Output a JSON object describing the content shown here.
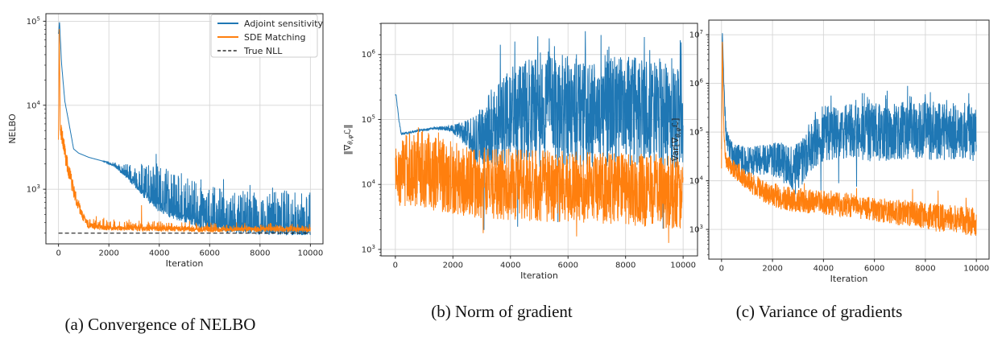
{
  "figure": {
    "background": "#ffffff",
    "accent_colors": {
      "blue": "#1f77b4",
      "orange": "#ff7f0e",
      "black": "#000000",
      "grid": "#d6d6d6",
      "spine": "#262626",
      "text": "#262626"
    },
    "chart_data": [
      {
        "id": "a",
        "type": "line",
        "caption": "(a) Convergence of NELBO",
        "xlabel": "Iteration",
        "ylabel": {
          "pre": "NELBO",
          "sub": "",
          "post": ""
        },
        "xlim": [
          -500,
          10500
        ],
        "ylim_log": [
          2.35,
          5.09
        ],
        "xticks": [
          0,
          2000,
          4000,
          6000,
          8000,
          10000
        ],
        "ytick_exponents": [
          3,
          4,
          5
        ],
        "grid": true,
        "legend": {
          "position": "upper right",
          "entries": [
            {
              "label": "Adjoint sensitivity",
              "color": "#1f77b4",
              "dash": false
            },
            {
              "label": "SDE Matching",
              "color": "#ff7f0e",
              "dash": false
            },
            {
              "label": "True NLL",
              "color": "#000000",
              "dash": true
            }
          ]
        },
        "hline": {
          "name": "True NLL",
          "value": 300,
          "log_value": 2.477,
          "color": "#000000",
          "dash": true
        },
        "series": [
          {
            "name": "Adjoint sensitivity",
            "color": "#1f77b4",
            "x": [
              0,
              40,
              120,
              250,
              400,
              600,
              800,
              1200,
              1700,
              2200,
              2600,
              3000,
              3500,
              4000,
              4500,
              5000,
              5500,
              6000,
              7000,
              8000,
              9000,
              10000
            ],
            "log_center": [
              4.85,
              5.0,
              4.5,
              4.05,
              3.81,
              3.48,
              3.43,
              3.38,
              3.34,
              3.28,
              3.18,
              3.06,
              2.9,
              2.78,
              2.7,
              2.645,
              2.6,
              2.56,
              2.52,
              2.505,
              2.5,
              2.5
            ],
            "log_noise": [
              0,
              0,
              0,
              0,
              0,
              0,
              0,
              0,
              0,
              0.01,
              0.02,
              0.03,
              0.04,
              0.05,
              0.05,
              0.05,
              0.05,
              0.05,
              0.05,
              0.05,
              0.05,
              0.05
            ],
            "spike_max": [
              0,
              0,
              0,
              0,
              0,
              0,
              0,
              0,
              0,
              0.04,
              0.12,
              0.22,
              0.38,
              0.5,
              0.52,
              0.5,
              0.5,
              0.5,
              0.48,
              0.46,
              0.45,
              0.42
            ],
            "spike_prob": 0.5,
            "events": [
              [
                3880,
                3.42
              ],
              [
                3300,
                3.3
              ],
              [
                2550,
                3.25
              ],
              [
                4350,
                3.22
              ],
              [
                4750,
                3.16
              ],
              [
                5300,
                3.1
              ],
              [
                6550,
                3.12
              ],
              [
                7600,
                3.05
              ],
              [
                8500,
                3.02
              ],
              [
                9050,
                2.98
              ],
              [
                9650,
                2.95
              ],
              [
                9980,
                2.96
              ]
            ]
          },
          {
            "name": "SDE Matching",
            "color": "#ff7f0e",
            "x": [
              0,
              30,
              70,
              150,
              300,
              450,
              600,
              750,
              900,
              1050,
              1200,
              1500,
              2000,
              3000,
              4000,
              6000,
              8000,
              10000
            ],
            "log_center": [
              3.6,
              4.99,
              3.72,
              3.62,
              3.35,
              3.16,
              2.99,
              2.84,
              2.72,
              2.63,
              2.57,
              2.55,
              2.54,
              2.53,
              2.53,
              2.52,
              2.52,
              2.52
            ],
            "log_noise": [
              0.05,
              0.01,
              0.1,
              0.12,
              0.12,
              0.1,
              0.09,
              0.08,
              0.06,
              0.05,
              0.04,
              0.035,
              0.03,
              0.03,
              0.03,
              0.03,
              0.03,
              0.03
            ],
            "spike_max": [
              0,
              0,
              0,
              0,
              0,
              0,
              0,
              0,
              0,
              0,
              0.05,
              0.1,
              0.1,
              0.08,
              0.08,
              0.07,
              0.06,
              0.06
            ],
            "spike_prob": 0.2,
            "events": [
              [
                3300,
                2.81
              ],
              [
                1500,
                2.68
              ],
              [
                1800,
                2.66
              ],
              [
                2200,
                2.64
              ],
              [
                2700,
                2.62
              ],
              [
                5200,
                2.62
              ],
              [
                7400,
                2.6
              ]
            ]
          }
        ]
      },
      {
        "id": "b",
        "type": "line",
        "caption": "(b) Norm of gradient",
        "xlabel": "Iteration",
        "ylabel": {
          "pre": "‖∇",
          "sub": "θ,φ",
          "post": "ℒ‖"
        },
        "xlim": [
          -500,
          10500
        ],
        "ylim_log": [
          2.9,
          6.48
        ],
        "xticks": [
          0,
          2000,
          4000,
          6000,
          8000,
          10000
        ],
        "ytick_exponents": [
          3,
          4,
          5,
          6
        ],
        "grid": true,
        "series": [
          {
            "name": "Adjoint sensitivity",
            "color": "#1f77b4",
            "x": [
              0,
              30,
              120,
              200,
              400,
              800,
              1400,
              1900,
              2200,
              2500,
              2800,
              3100,
              3400,
              3800,
              4300,
              5000,
              6000,
              7000,
              8000,
              9000,
              10000
            ],
            "log_center": [
              5.38,
              5.35,
              5.0,
              4.78,
              4.79,
              4.83,
              4.87,
              4.86,
              4.83,
              4.78,
              4.7,
              4.78,
              4.9,
              5.0,
              5.1,
              5.12,
              5.12,
              5.12,
              5.12,
              5.1,
              5.1
            ],
            "log_noise": [
              0.02,
              0.02,
              0.02,
              0.02,
              0.015,
              0.015,
              0.02,
              0.05,
              0.12,
              0.22,
              0.38,
              0.52,
              0.62,
              0.72,
              0.8,
              0.85,
              0.85,
              0.85,
              0.85,
              0.85,
              0.85
            ],
            "spike_max": [
              0,
              0,
              0,
              0,
              0,
              0,
              0,
              0,
              0,
              0,
              0,
              0.05,
              0.15,
              0.2,
              0.25,
              0.3,
              0.3,
              0.3,
              0.3,
              0.3,
              0.3
            ],
            "spike_prob": 0.22,
            "events": [
              [
                3080,
                3.3
              ],
              [
                4250,
                3.35
              ],
              [
                5650,
                3.42
              ],
              [
                9300,
                3.32
              ],
              [
                6600,
                6.36
              ],
              [
                7150,
                6.3
              ],
              [
                4950,
                6.28
              ],
              [
                8650,
                6.27
              ],
              [
                9900,
                6.22
              ],
              [
                5350,
                6.25
              ],
              [
                3650,
                6.15
              ],
              [
                4150,
                6.2
              ]
            ]
          },
          {
            "name": "SDE Matching",
            "color": "#ff7f0e",
            "x": [
              0,
              100,
              300,
              600,
              900,
              1300,
              1800,
              2400,
              3000,
              4000,
              5000,
              6000,
              7000,
              8000,
              9000,
              10000
            ],
            "log_center": [
              4.1,
              4.15,
              4.2,
              4.25,
              4.25,
              4.18,
              4.12,
              4.06,
              4.02,
              4.0,
              3.98,
              3.96,
              3.95,
              3.93,
              3.9,
              3.88
            ],
            "log_noise": [
              0.45,
              0.5,
              0.55,
              0.58,
              0.6,
              0.58,
              0.56,
              0.55,
              0.55,
              0.55,
              0.55,
              0.55,
              0.55,
              0.55,
              0.57,
              0.6
            ],
            "spike_max": [
              0,
              0,
              0,
              0,
              0,
              0,
              0,
              0,
              0,
              0,
              0,
              0,
              0,
              0,
              0,
              0
            ],
            "spike_prob": 0,
            "events": [
              [
                800,
                4.88
              ],
              [
                1500,
                4.8
              ],
              [
                3050,
                3.25
              ],
              [
                9500,
                3.1
              ],
              [
                6300,
                3.2
              ]
            ]
          }
        ]
      },
      {
        "id": "c",
        "type": "line",
        "caption": "(c) Variance of gradients",
        "xlabel": "Iteration",
        "ylabel": {
          "pre": "Var[∇",
          "sub": "θ,φ",
          "post": "ℒ]"
        },
        "xlim": [
          -500,
          10500
        ],
        "ylim_log": [
          2.39,
          7.3
        ],
        "xticks": [
          0,
          2000,
          4000,
          6000,
          8000,
          10000
        ],
        "ytick_exponents": [
          3,
          4,
          5,
          6,
          7
        ],
        "grid": true,
        "series": [
          {
            "name": "Adjoint sensitivity",
            "color": "#1f77b4",
            "x": [
              0,
              30,
              90,
              180,
              350,
              700,
              1200,
              1800,
              2300,
              2700,
              3100,
              3500,
              4000,
              4500,
              5500,
              6500,
              7500,
              8500,
              9500,
              10000
            ],
            "log_center": [
              4.6,
              7.1,
              6.0,
              4.9,
              4.55,
              4.45,
              4.4,
              4.45,
              4.4,
              4.25,
              4.35,
              4.7,
              4.95,
              5.0,
              5.0,
              5.0,
              5.05,
              5.02,
              5.0,
              5.0
            ],
            "log_noise": [
              0.1,
              0.02,
              0.1,
              0.2,
              0.28,
              0.3,
              0.3,
              0.32,
              0.4,
              0.45,
              0.5,
              0.5,
              0.55,
              0.58,
              0.6,
              0.6,
              0.6,
              0.6,
              0.6,
              0.6
            ],
            "spike_max": [
              0,
              0,
              0,
              0,
              0,
              0,
              0,
              0,
              0,
              0,
              0,
              0.2,
              0.25,
              0.25,
              0.25,
              0.25,
              0.25,
              0.25,
              0.25,
              0.25
            ],
            "spike_prob": 0.18,
            "events": [
              [
                2900,
                3.72
              ],
              [
                3900,
                3.8
              ],
              [
                4600,
                3.95
              ],
              [
                5300,
                3.88
              ],
              [
                7300,
                5.95
              ],
              [
                6500,
                5.85
              ],
              [
                5600,
                5.8
              ],
              [
                9700,
                5.8
              ],
              [
                4300,
                5.75
              ],
              [
                8200,
                5.82
              ]
            ]
          },
          {
            "name": "SDE Matching",
            "color": "#ff7f0e",
            "x": [
              0,
              30,
              90,
              160,
              300,
              600,
              900,
              1300,
              1800,
              2400,
              3000,
              4000,
              5000,
              6000,
              7000,
              8000,
              9000,
              10000
            ],
            "log_center": [
              4.35,
              7.0,
              5.1,
              4.45,
              4.32,
              4.2,
              4.05,
              3.9,
              3.75,
              3.65,
              3.6,
              3.55,
              3.5,
              3.42,
              3.35,
              3.28,
              3.2,
              3.15
            ],
            "log_noise": [
              0.1,
              0.02,
              0.12,
              0.15,
              0.18,
              0.2,
              0.2,
              0.22,
              0.25,
              0.25,
              0.25,
              0.25,
              0.25,
              0.25,
              0.27,
              0.28,
              0.3,
              0.3
            ],
            "spike_max": [
              0,
              0,
              0,
              0,
              0,
              0,
              0,
              0,
              0,
              0,
              0,
              0,
              0,
              0,
              0,
              0,
              0,
              0
            ],
            "spike_prob": 0,
            "events": [
              [
                3250,
                3.95
              ],
              [
                4300,
                3.8
              ],
              [
                5300,
                3.85
              ],
              [
                7500,
                3.83
              ],
              [
                8500,
                3.8
              ],
              [
                9600,
                3.65
              ]
            ]
          }
        ]
      }
    ]
  }
}
